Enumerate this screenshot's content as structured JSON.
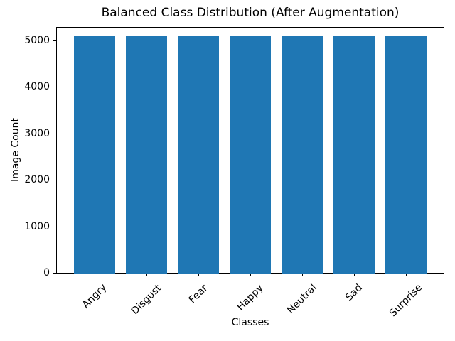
{
  "figure": {
    "background": "#ffffff"
  },
  "chart_data": {
    "type": "bar",
    "title": "Balanced Class Distribution (After Augmentation)",
    "xlabel": "Classes",
    "ylabel": "Image Count",
    "categories": [
      "Angry",
      "Disgust",
      "Fear",
      "Happy",
      "Neutral",
      "Sad",
      "Surprise"
    ],
    "values": [
      5100,
      5100,
      5100,
      5100,
      5100,
      5100,
      5100
    ],
    "ylim": [
      0,
      5300
    ],
    "yticks": [
      0,
      1000,
      2000,
      3000,
      4000,
      5000
    ],
    "x_tick_rotation_deg": 45,
    "bar_width_fraction": 0.8,
    "bar_color": "#1f77b4",
    "axis_color": "#000000",
    "text_color": "#000000",
    "grid": false,
    "legend": "none"
  }
}
